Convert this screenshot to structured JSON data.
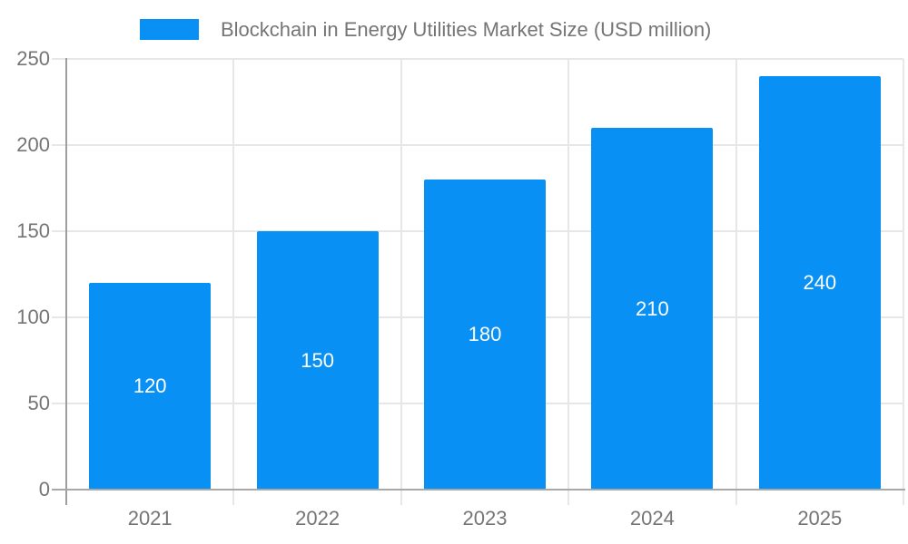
{
  "legend": {
    "label": "Blockchain in Energy Utilities Market Size (USD million)"
  },
  "chart_data": {
    "type": "bar",
    "title": "Blockchain in Energy Utilities Market Size (USD million)",
    "categories": [
      "2021",
      "2022",
      "2023",
      "2024",
      "2025"
    ],
    "values": [
      120,
      150,
      180,
      210,
      240
    ],
    "series": [
      {
        "name": "Blockchain in Energy Utilities Market Size (USD million)",
        "values": [
          120,
          150,
          180,
          210,
          240
        ]
      }
    ],
    "xlabel": "",
    "ylabel": "",
    "ylim": [
      0,
      250
    ],
    "yticks": [
      0,
      50,
      100,
      150,
      200,
      250
    ],
    "grid": true,
    "legend_position": "top-center",
    "value_labels": "inside-center",
    "colors": {
      "bar": "#0990f5",
      "value_label": "#ffffff",
      "axis_text": "#757575",
      "gridline": "#e7e7e7",
      "axis_line": "#9e9e9e",
      "baseline": "#a8a8a8",
      "background": "#ffffff"
    }
  }
}
